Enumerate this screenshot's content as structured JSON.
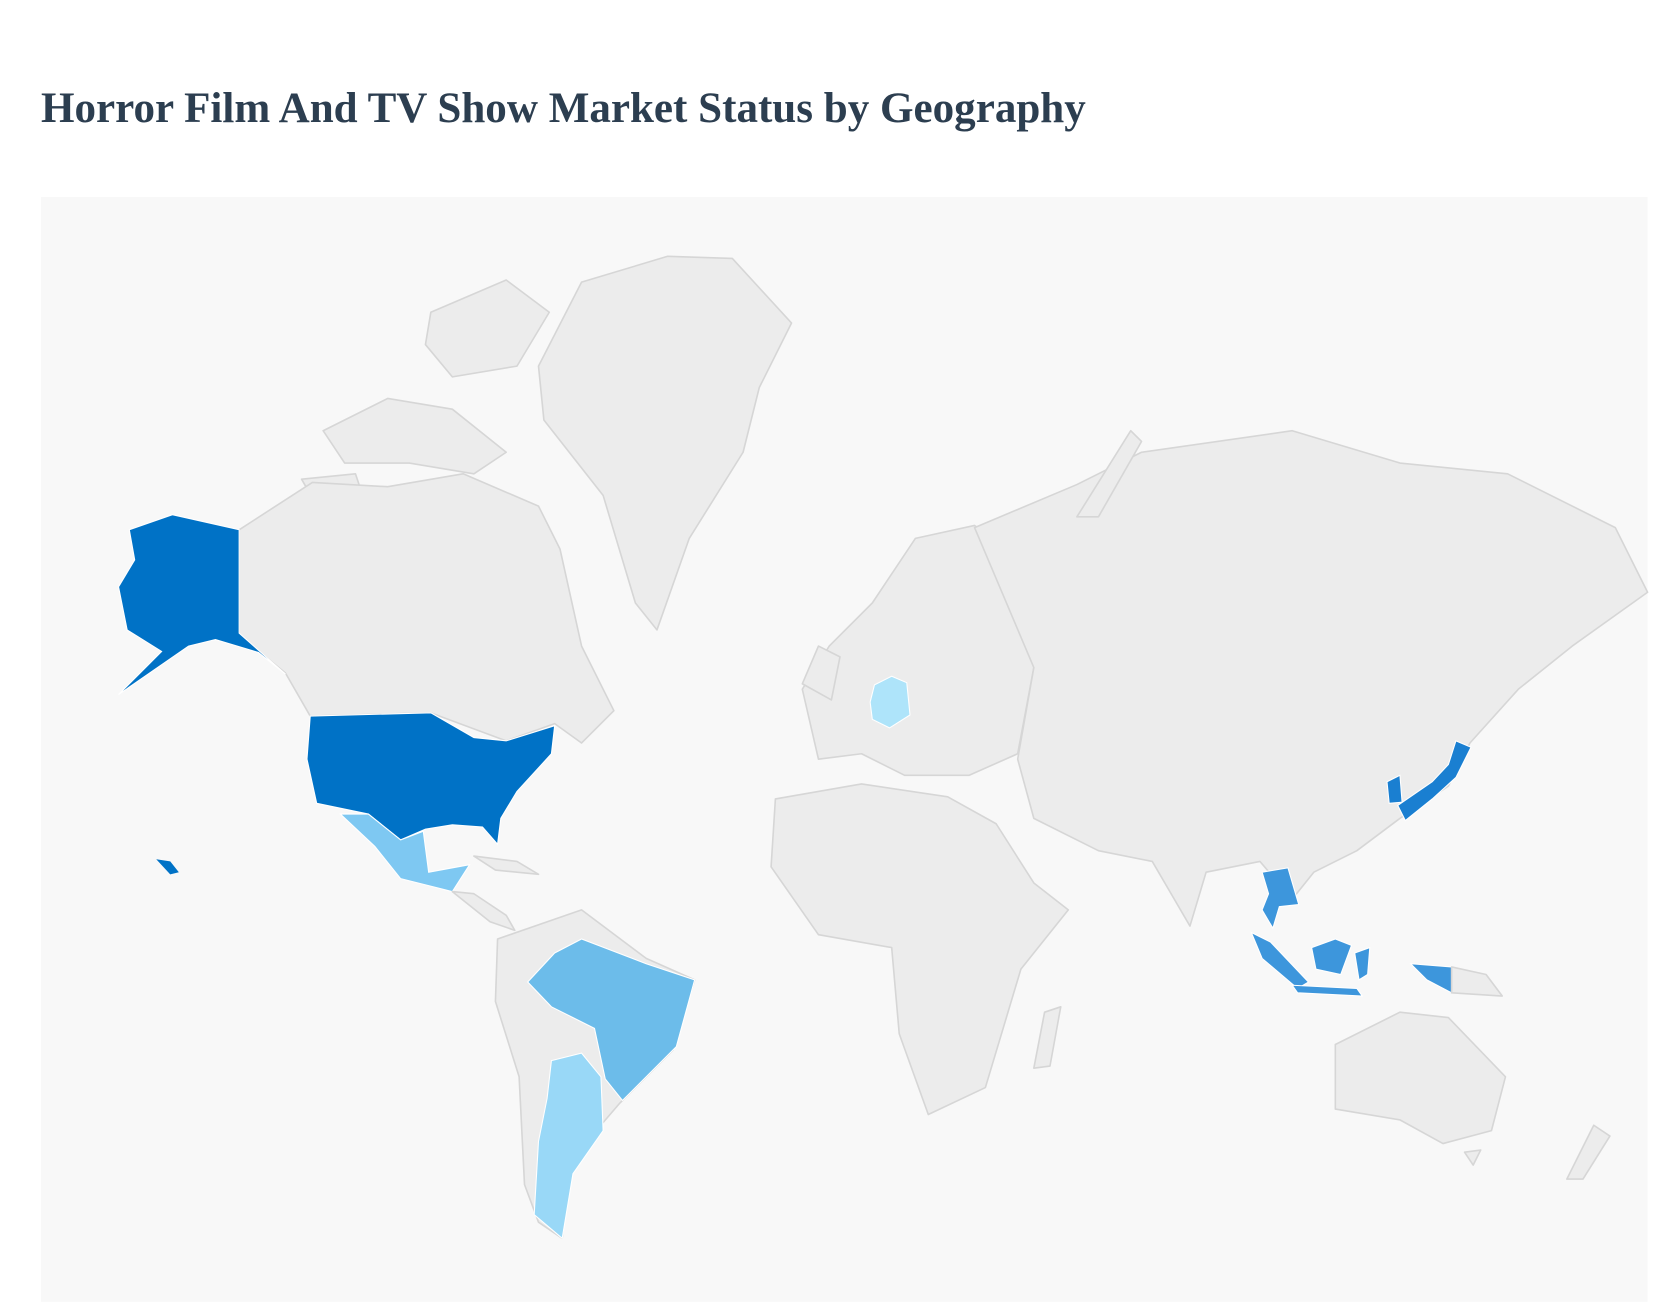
{
  "title": "Horror Film And TV Show Market Status by Geography"
}
